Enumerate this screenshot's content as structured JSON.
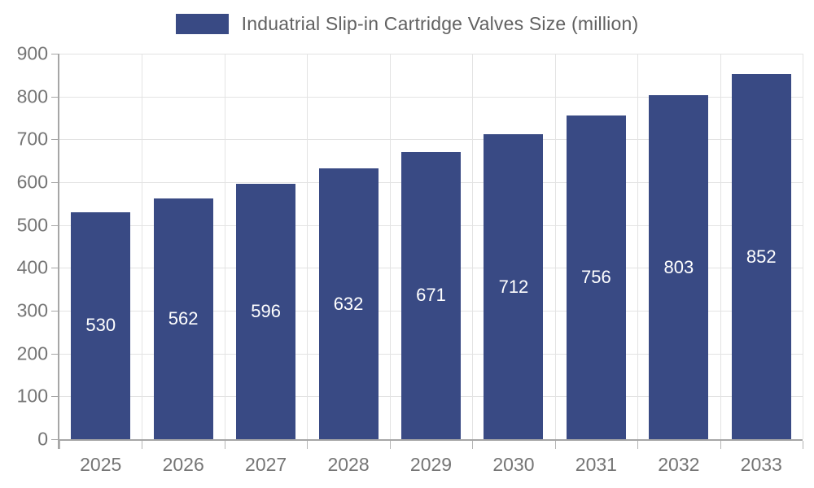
{
  "chart_data": {
    "type": "bar",
    "title": "Induatrial Slip-in Cartridge Valves Size (million)",
    "categories": [
      "2025",
      "2026",
      "2027",
      "2028",
      "2029",
      "2030",
      "2031",
      "2032",
      "2033"
    ],
    "values": [
      530,
      562,
      596,
      632,
      671,
      712,
      756,
      803,
      852
    ],
    "xlabel": "",
    "ylabel": "",
    "ylim": [
      0,
      900
    ],
    "ytick_step": 100,
    "yticks": [
      0,
      100,
      200,
      300,
      400,
      500,
      600,
      700,
      800,
      900
    ],
    "grid": true,
    "legend_position": "top",
    "bar_labels_shown": true
  },
  "legend": {
    "label": "Induatrial Slip-in Cartridge Valves Size (million)"
  },
  "colors": {
    "bar": "#394A84",
    "bar_label_text": "#ffffff",
    "grid": "#e3e3e3",
    "axis": "#a6a6a6",
    "tick_text": "#757575",
    "legend_text": "#616161"
  }
}
